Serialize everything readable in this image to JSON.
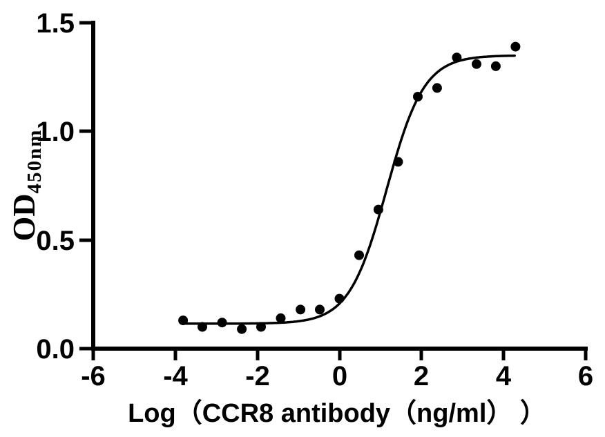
{
  "chart_data": {
    "type": "scatter",
    "xlabel": "Log（CCR8 antibody（ng/ml） ）",
    "ylabel_main": "OD",
    "ylabel_subscript": "450nm",
    "x": [
      -3.81,
      -3.34,
      -2.86,
      -2.38,
      -1.91,
      -1.43,
      -0.95,
      -0.48,
      0.0,
      0.48,
      0.95,
      1.43,
      1.91,
      2.38,
      2.86,
      3.34,
      3.81,
      4.29
    ],
    "y": [
      0.13,
      0.1,
      0.12,
      0.09,
      0.1,
      0.14,
      0.18,
      0.18,
      0.23,
      0.43,
      0.64,
      0.86,
      1.16,
      1.2,
      1.34,
      1.31,
      1.3,
      1.39
    ],
    "xlim": [
      -6,
      6
    ],
    "ylim": [
      0,
      1.5
    ],
    "xticks": {
      "values": [
        -6,
        -4,
        -2,
        0,
        2,
        4,
        6
      ],
      "labels": [
        "-6",
        "-4",
        "-2",
        "0",
        "2",
        "4",
        "6"
      ]
    },
    "yticks": {
      "values": [
        0,
        0.5,
        1.0,
        1.5
      ],
      "labels": [
        "0.0",
        "0.5",
        "1.0",
        "1.5"
      ]
    },
    "grid": false,
    "marker_color": "#000000",
    "line_color": "#000000",
    "axis_color": "#000000",
    "background_color": "#ffffff",
    "curve_fit": {
      "model": "4PL sigmoidal dose-response",
      "bottom": 0.115,
      "top": 1.35,
      "logEC50": 1.15,
      "hillslope": 0.95,
      "x_range": [
        -3.81,
        4.29
      ]
    }
  }
}
